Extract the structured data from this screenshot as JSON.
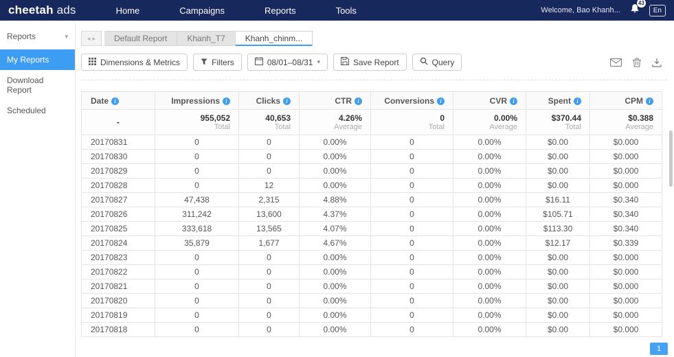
{
  "colors": {
    "navbar_bg": "#17285C",
    "accent_blue": "#3D9DF3",
    "active_sidebar_bg": "#3D9DF3",
    "pagination_bg": "#45A2F4"
  },
  "navbar": {
    "brand_bold": "cheetah",
    "brand_light": " ads",
    "items": [
      {
        "label": "Home"
      },
      {
        "label": "Campaigns"
      },
      {
        "label": "Reports"
      },
      {
        "label": "Tools"
      }
    ],
    "welcome_prefix": "Welcome,",
    "username": "Bao Khanh...",
    "notification_count": "43",
    "language": "En"
  },
  "sidebar": {
    "section_label": "Reports",
    "items": [
      {
        "label": "My Reports",
        "active": true
      },
      {
        "label": "Download Report",
        "active": false
      },
      {
        "label": "Scheduled",
        "active": false
      }
    ]
  },
  "tabs": [
    {
      "label": "Default Report",
      "active": false
    },
    {
      "label": "Khanh_T7",
      "active": false
    },
    {
      "label": "Khanh_chinm...",
      "active": true
    }
  ],
  "toolbar": {
    "dimensions_metrics_label": "Dimensions & Metrics",
    "filters_label": "Filters",
    "date_range": "08/01–08/31",
    "save_report_label": "Save Report",
    "query_label": "Query"
  },
  "table": {
    "columns": [
      "Date",
      "Impressions",
      "Clicks",
      "CTR",
      "Conversions",
      "CVR",
      "Spent",
      "CPM"
    ],
    "totals": {
      "values": [
        "-",
        "955,052",
        "40,653",
        "4.26%",
        "0",
        "0.00%",
        "$370.44",
        "$0.388"
      ],
      "sublabels": [
        "",
        "Total",
        "Total",
        "Average",
        "Total",
        "Average",
        "Total",
        "Average"
      ]
    },
    "rows": [
      [
        "20170831",
        "0",
        "0",
        "0.00%",
        "0",
        "0.00%",
        "$0.00",
        "$0.000"
      ],
      [
        "20170830",
        "0",
        "0",
        "0.00%",
        "0",
        "0.00%",
        "$0.00",
        "$0.000"
      ],
      [
        "20170829",
        "0",
        "0",
        "0.00%",
        "0",
        "0.00%",
        "$0.00",
        "$0.000"
      ],
      [
        "20170828",
        "0",
        "12",
        "0.00%",
        "0",
        "0.00%",
        "$0.00",
        "$0.000"
      ],
      [
        "20170827",
        "47,438",
        "2,315",
        "4.88%",
        "0",
        "0.00%",
        "$16.11",
        "$0.340"
      ],
      [
        "20170826",
        "311,242",
        "13,600",
        "4.37%",
        "0",
        "0.00%",
        "$105.71",
        "$0.340"
      ],
      [
        "20170825",
        "333,618",
        "13,565",
        "4.07%",
        "0",
        "0.00%",
        "$113.30",
        "$0.340"
      ],
      [
        "20170824",
        "35,879",
        "1,677",
        "4.67%",
        "0",
        "0.00%",
        "$12.17",
        "$0.339"
      ],
      [
        "20170823",
        "0",
        "0",
        "0.00%",
        "0",
        "0.00%",
        "$0.00",
        "$0.000"
      ],
      [
        "20170822",
        "0",
        "0",
        "0.00%",
        "0",
        "0.00%",
        "$0.00",
        "$0.000"
      ],
      [
        "20170821",
        "0",
        "0",
        "0.00%",
        "0",
        "0.00%",
        "$0.00",
        "$0.000"
      ],
      [
        "20170820",
        "0",
        "0",
        "0.00%",
        "0",
        "0.00%",
        "$0.00",
        "$0.000"
      ],
      [
        "20170819",
        "0",
        "0",
        "0.00%",
        "0",
        "0.00%",
        "$0.00",
        "$0.000"
      ],
      [
        "20170818",
        "0",
        "0",
        "0.00%",
        "0",
        "0.00%",
        "$0.00",
        "$0.000"
      ]
    ]
  },
  "pagination": {
    "page": "1"
  }
}
